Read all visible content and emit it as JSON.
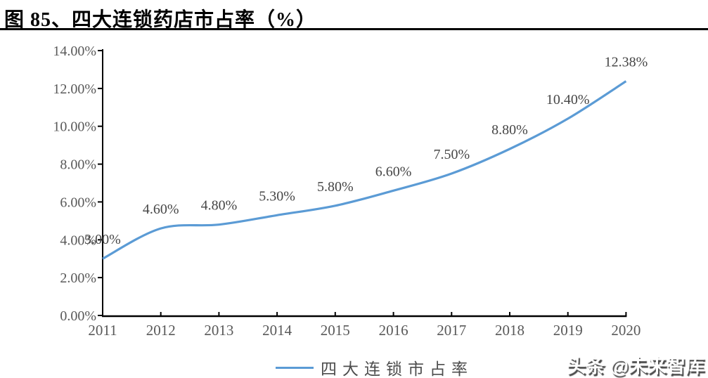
{
  "figure": {
    "title": "图 85、四大连锁药店市占率（%）"
  },
  "chart_data": {
    "type": "line",
    "title": "四大连锁药店市占率（%）",
    "categories": [
      "2011",
      "2012",
      "2013",
      "2014",
      "2015",
      "2016",
      "2017",
      "2018",
      "2019",
      "2020"
    ],
    "series": [
      {
        "name": "四大连锁市占率",
        "values": [
          3.0,
          4.6,
          4.8,
          5.3,
          5.8,
          6.6,
          7.5,
          8.8,
          10.4,
          12.38
        ]
      }
    ],
    "point_labels": [
      "3.00%",
      "4.60%",
      "4.80%",
      "5.30%",
      "5.80%",
      "6.60%",
      "7.50%",
      "8.80%",
      "10.40%",
      "12.38%"
    ],
    "xlabel": "",
    "ylabel": "",
    "ylim": [
      0,
      14
    ],
    "y_step": 2,
    "y_tick_labels": [
      "0.00%",
      "2.00%",
      "4.00%",
      "6.00%",
      "8.00%",
      "10.00%",
      "12.00%",
      "14.00%"
    ],
    "grid": false,
    "smooth": true,
    "legend_position": "bottom",
    "line_color": "#5B9BD5",
    "axis_color": "#000000",
    "tick_label_color": "#595959",
    "data_label_color": "#464646"
  },
  "legend": {
    "label": "四大连锁市占率"
  },
  "watermark": {
    "text": "头条 @未来智库"
  }
}
